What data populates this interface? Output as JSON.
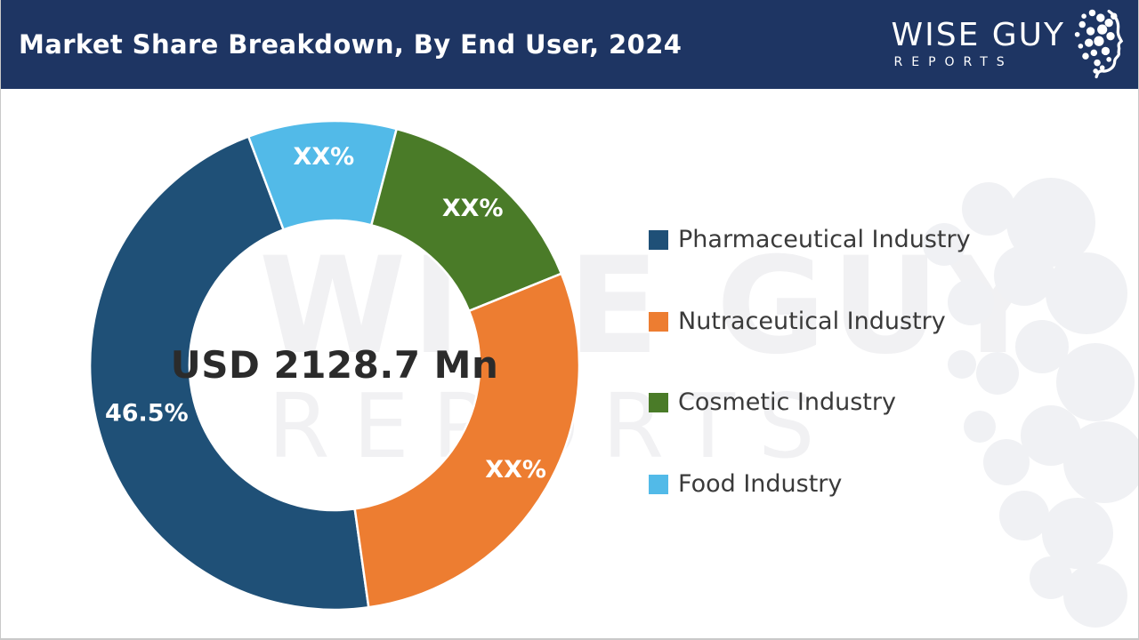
{
  "chart_data": {
    "type": "pie",
    "subtype": "donut",
    "title": "Market Share Breakdown, By End User, 2024",
    "center_text": "USD 2128.7 Mn",
    "start_angle_deg": 172,
    "direction": "clockwise",
    "legend_position": "right",
    "slices": [
      {
        "name": "Pharmaceutical Industry",
        "value": 46.5,
        "label": "46.5%",
        "color": "#1F5077"
      },
      {
        "name": "Food Industry",
        "value": 9.8,
        "label": "XX%",
        "color": "#52BAE8"
      },
      {
        "name": "Cosmetic Industry",
        "value": 14.8,
        "label": "XX%",
        "color": "#4A7B28"
      },
      {
        "name": "Nutraceutical Industry",
        "value": 28.9,
        "label": "XX%",
        "color": "#ED7D31"
      }
    ]
  },
  "logo": {
    "line1": "WISE GUY",
    "line2": "REPORTS"
  },
  "watermark": {
    "line1": "WISE GUY",
    "line2": "REPORTS"
  },
  "colors": {
    "header_bg": "#1E3563",
    "center_text": "#2B2B2B",
    "legend_text": "#3A3A3A",
    "border": "#C9C9C9",
    "watermark": "#F1F1F3"
  }
}
